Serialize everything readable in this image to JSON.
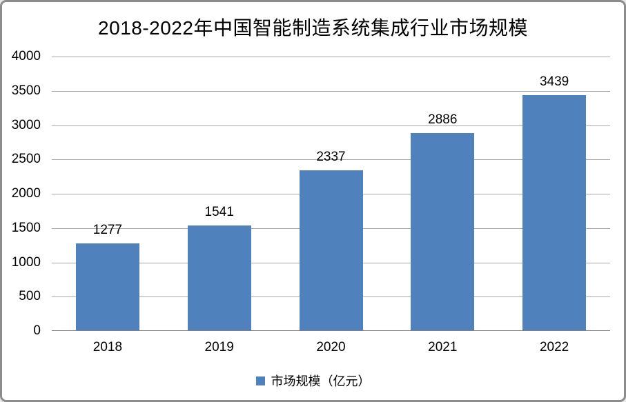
{
  "chart_data": {
    "type": "bar",
    "title": "2018-2022年中国智能制造系统集成行业市场规模",
    "categories": [
      "2018",
      "2019",
      "2020",
      "2021",
      "2022"
    ],
    "series": [
      {
        "name": "市场规模（亿元）",
        "values": [
          1277,
          1541,
          2337,
          2886,
          3439
        ]
      }
    ],
    "data_labels": [
      "1277",
      "1541",
      "2337",
      "2886",
      "3439"
    ],
    "ylim": [
      0,
      4000
    ],
    "ytick_step": 500,
    "ytick_labels": [
      "0",
      "500",
      "1000",
      "1500",
      "2000",
      "2500",
      "3000",
      "3500",
      "4000"
    ],
    "grid": true,
    "legend_position": "bottom",
    "colors": {
      "bar": "#4F81BD",
      "gridline": "#A6A6A6",
      "axis_line": "#808080",
      "text": "#000000",
      "frame_border": "#8C8C8C",
      "background": "#FFFFFF"
    }
  }
}
